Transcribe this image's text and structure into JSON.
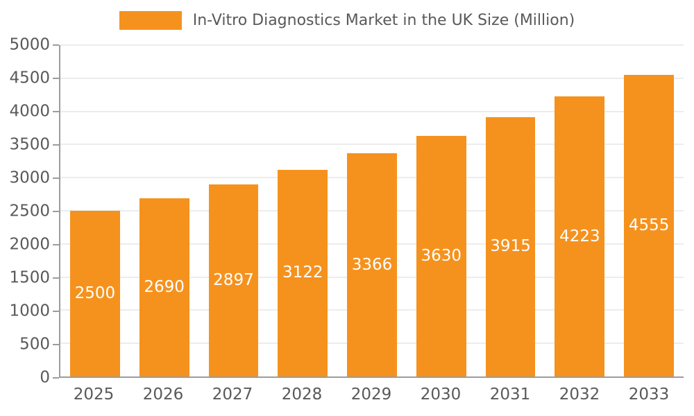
{
  "chart_data": {
    "type": "bar",
    "title": "In-Vitro Diagnostics Market in the UK Size (Million)",
    "categories": [
      "2025",
      "2026",
      "2027",
      "2028",
      "2029",
      "2030",
      "2031",
      "2032",
      "2033"
    ],
    "values": [
      2500,
      2690,
      2897,
      3122,
      3366,
      3630,
      3915,
      4223,
      4555
    ],
    "xlabel": "",
    "ylabel": "",
    "ylim": [
      0,
      5000
    ],
    "ytick_step": 500,
    "grid": true,
    "legend_position": "top",
    "bar_color": "#F5921E",
    "bar_label_color": "#FFFFFF",
    "axis_text_color": "#595959",
    "legend_text_color": "#58595B",
    "gridline_color": "#D9D9D9",
    "axis_line_color": "#9C9C9C"
  }
}
